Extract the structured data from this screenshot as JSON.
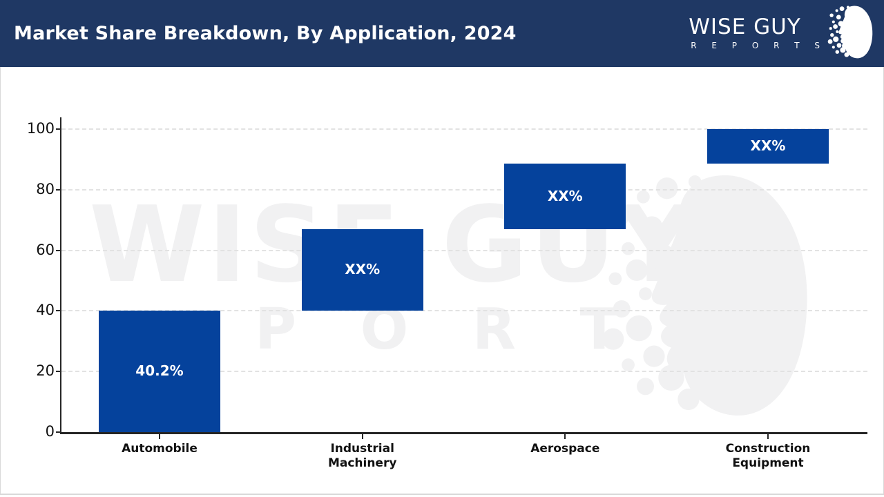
{
  "header": {
    "title": "Market Share Breakdown, By Application, 2024",
    "logo": {
      "line1": "WISE GUY",
      "line2": "R E P O R T S"
    }
  },
  "watermark": {
    "line1": "WISE GUY",
    "line2": "P O R T S"
  },
  "chart_data": {
    "type": "bar",
    "subtype": "waterfall-segments",
    "title": "Market Share Breakdown, By Application, 2024",
    "xlabel": "",
    "ylabel": "",
    "categories": [
      "Automobile",
      "Industrial\nMachinery",
      "Aerospace",
      "Construction\nEquipment"
    ],
    "segments": [
      {
        "category": "Automobile",
        "start": 0,
        "end": 40.2,
        "label": "40.2%"
      },
      {
        "category": "Industrial Machinery",
        "start": 40.2,
        "end": 67,
        "label": "XX%"
      },
      {
        "category": "Aerospace",
        "start": 67,
        "end": 88.5,
        "label": "XX%"
      },
      {
        "category": "Construction Equipment",
        "start": 88.5,
        "end": 100,
        "label": "XX%"
      }
    ],
    "yticks": [
      0,
      20,
      40,
      60,
      80,
      100
    ],
    "ylim": [
      0,
      104
    ],
    "grid": true,
    "grid_style": "dashed",
    "legend_position": "none",
    "bar_color": "#05429c",
    "bar_label_color": "#ffffff",
    "axis_color": "#262626",
    "grid_color": "#e2e2e2",
    "header_color": "#1f3864",
    "watermark_color": "#f1f1f2"
  }
}
